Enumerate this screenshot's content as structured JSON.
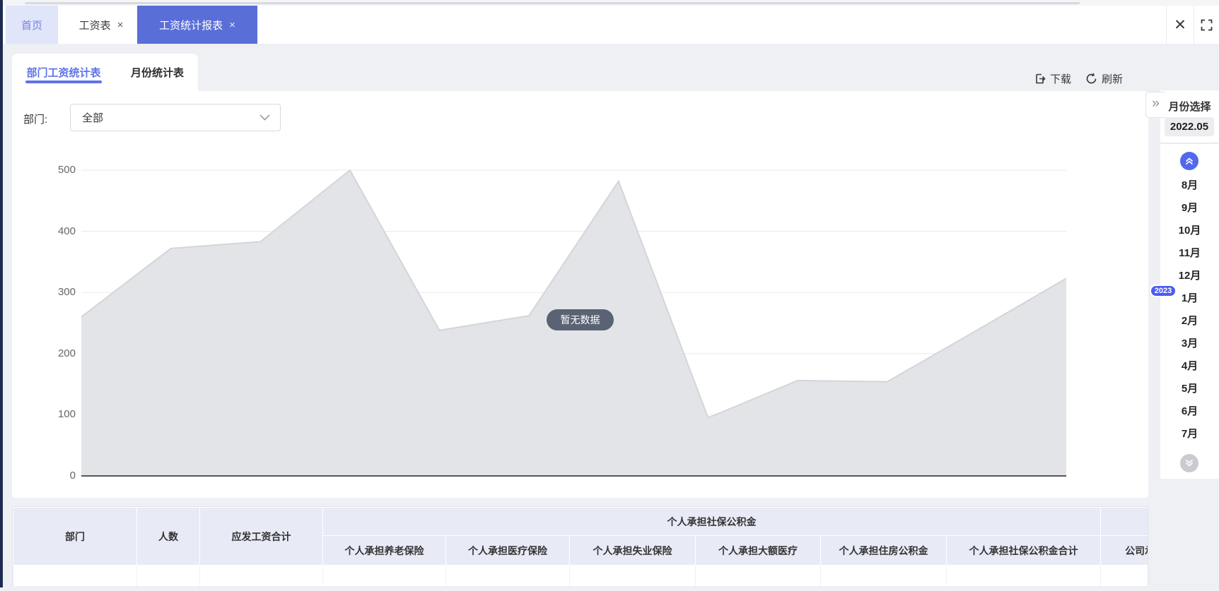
{
  "window": {
    "close_glyph": "✕"
  },
  "main_tabs": [
    {
      "label": "首页",
      "closable": false,
      "style": "home"
    },
    {
      "label": "工资表",
      "closable": true,
      "style": "plain"
    },
    {
      "label": "工资统计报表",
      "closable": true,
      "style": "active"
    }
  ],
  "sub_tabs": [
    {
      "label": "部门工资统计表",
      "active": true
    },
    {
      "label": "月份统计表",
      "active": false
    }
  ],
  "toolbar": {
    "download_label": "下载",
    "refresh_label": "刷新"
  },
  "filter": {
    "label": "部门:",
    "value": "全部"
  },
  "chart_data": {
    "type": "area",
    "title": "",
    "x_labels_visible": false,
    "values": [
      260,
      372,
      383,
      500,
      238,
      262,
      482,
      95,
      156,
      154,
      238,
      323
    ],
    "y_ticks": [
      0,
      100,
      200,
      300,
      400,
      500
    ],
    "ylim": [
      0,
      500
    ],
    "grid": true,
    "area_fill": "#e3e4e7",
    "line_color": "#d4d5d9",
    "overlay_text": "暂无数据"
  },
  "no_data_label": "暂无数据",
  "month_panel": {
    "title": "月份选择",
    "current": "2022.05",
    "months": [
      "8月",
      "9月",
      "10月",
      "11月",
      "12月",
      "1月",
      "2月",
      "3月",
      "4月",
      "5月",
      "6月",
      "7月"
    ],
    "year_badge": "2023",
    "badge_before": "1月"
  },
  "table": {
    "static_headers": [
      "部门",
      "人数",
      "应发工资合计"
    ],
    "group_header": "个人承担社保公积金",
    "sub_headers": [
      "个人承担养老保险",
      "个人承担医疗保险",
      "个人承担失业保险",
      "个人承担大额医疗",
      "个人承担住房公积金",
      "个人承担社保公积金合计"
    ],
    "next_group_header": "公司承担"
  },
  "colors": {
    "accent": "#5a6ed8",
    "subtab_accent": "#5f74e8",
    "home_tab_bg": "#e1e5f9",
    "home_tab_text": "#7382e2",
    "badge_blue": "#4b5cf0",
    "scroll_up_bg": "#5468ee",
    "scroll_down_bg": "#c9cbd1",
    "header_bg": "#e8ebf6",
    "tooltip_bg": "#5a6373"
  }
}
